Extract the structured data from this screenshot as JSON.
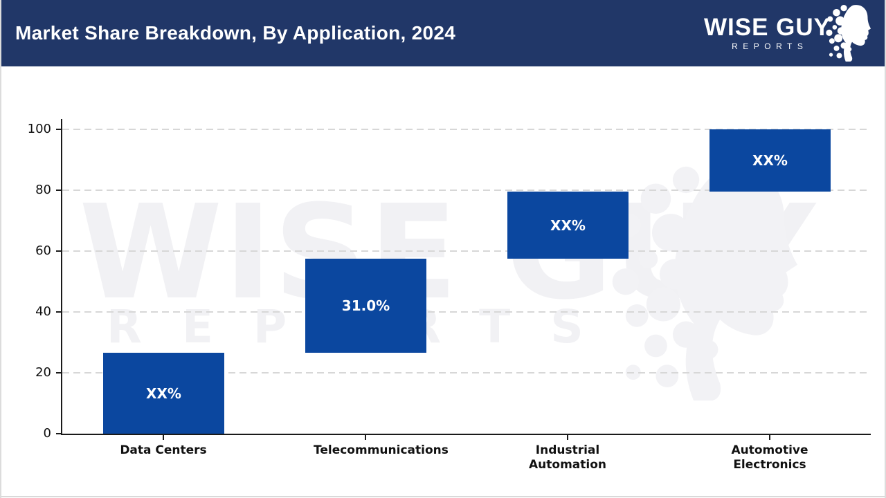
{
  "header": {
    "title": "Market Share Breakdown, By Application, 2024",
    "bg_color": "#213768",
    "logo": {
      "line1": "WISE GUY",
      "line2": "REPORTS"
    }
  },
  "watermark": {
    "line1": "WISE GUY",
    "line2": "REPORTS"
  },
  "chart_data": {
    "type": "bar",
    "subtype": "floating-waterfall",
    "title": "Market Share Breakdown, By Application, 2024",
    "categories": [
      "Data Centers",
      "Telecommunications",
      "Industrial Automation",
      "Automotive Electronics"
    ],
    "series": [
      {
        "name": "Market Share (%)",
        "segments": [
          {
            "category": "Data Centers",
            "start": 0,
            "end": 26.5,
            "label": "XX%"
          },
          {
            "category": "Telecommunications",
            "start": 26.5,
            "end": 57.5,
            "label": "31.0%"
          },
          {
            "category": "Industrial Automation",
            "start": 57.5,
            "end": 79.5,
            "label": "XX%"
          },
          {
            "category": "Automotive Electronics",
            "start": 79.5,
            "end": 100,
            "label": "XX%"
          }
        ]
      }
    ],
    "ylim": [
      0,
      100
    ],
    "yticks": [
      0,
      20,
      40,
      60,
      80,
      100
    ],
    "grid": {
      "horizontal": true,
      "style": "dashed",
      "color": "#d7d7d7"
    },
    "legend": "none",
    "bar_color": "#0b479f",
    "bar_label_color": "#ffffff",
    "axis_color": "#1a1a1a"
  }
}
